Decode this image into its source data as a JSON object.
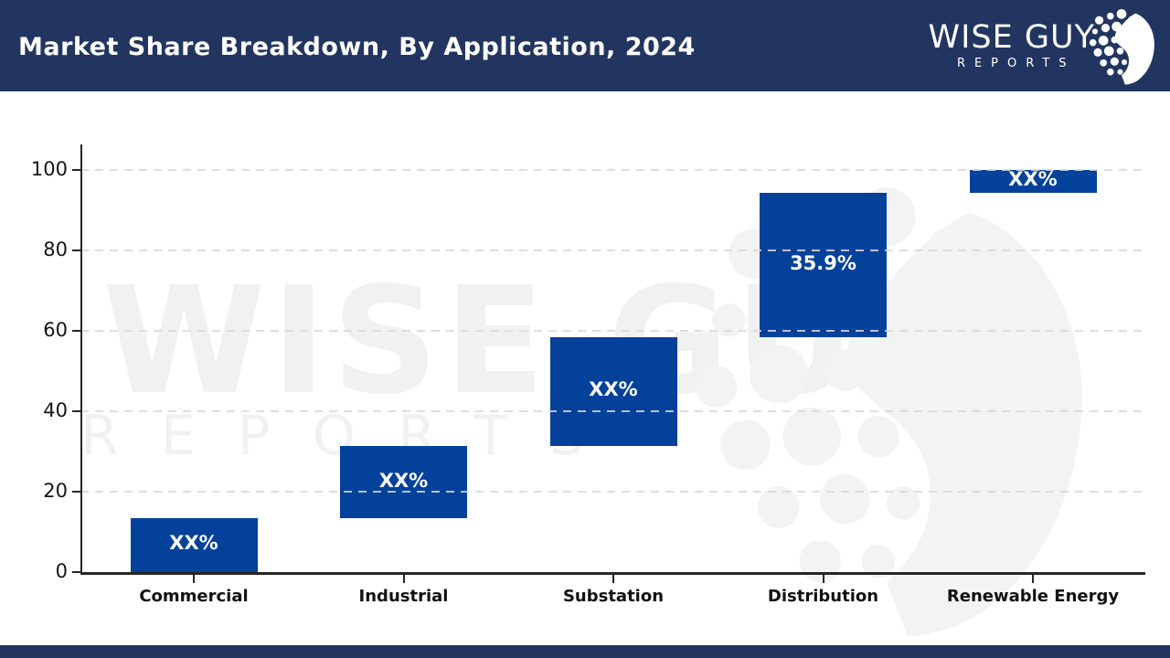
{
  "header": {
    "title": "Market Share Breakdown, By Application, 2024",
    "logo": {
      "line1": "WISE GUY",
      "line2": "REPORTS"
    }
  },
  "watermark": {
    "line1": "WISE GUY",
    "line2": "REPORTS"
  },
  "footer": {},
  "chart_data": {
    "type": "bar",
    "subtype": "floating-waterfall",
    "title": "Market Share Breakdown, By Application, 2024",
    "categories": [
      "Commercial",
      "Industrial",
      "Substation",
      "Distribution",
      "Renewable Energy"
    ],
    "series": [
      {
        "name": "Market Share (%)",
        "segments": [
          {
            "category": "Commercial",
            "start": 0,
            "end": 13.4,
            "label": "XX%"
          },
          {
            "category": "Industrial",
            "start": 13.4,
            "end": 31.3,
            "label": "XX%"
          },
          {
            "category": "Substation",
            "start": 31.3,
            "end": 58.4,
            "label": "XX%"
          },
          {
            "category": "Distribution",
            "start": 58.4,
            "end": 94.3,
            "label": "35.9%"
          },
          {
            "category": "Renewable Energy",
            "start": 94.3,
            "end": 100,
            "label": "XX%"
          }
        ]
      }
    ],
    "xlabel": "",
    "ylabel": "",
    "ylim": [
      0,
      106
    ],
    "yticks": [
      0,
      20,
      40,
      60,
      80,
      100
    ],
    "grid": "horizontal-dashed",
    "legend": "none",
    "bar_color": "#04419a",
    "bar_label_color": "#ffffff",
    "accent_navy": "#223560"
  }
}
